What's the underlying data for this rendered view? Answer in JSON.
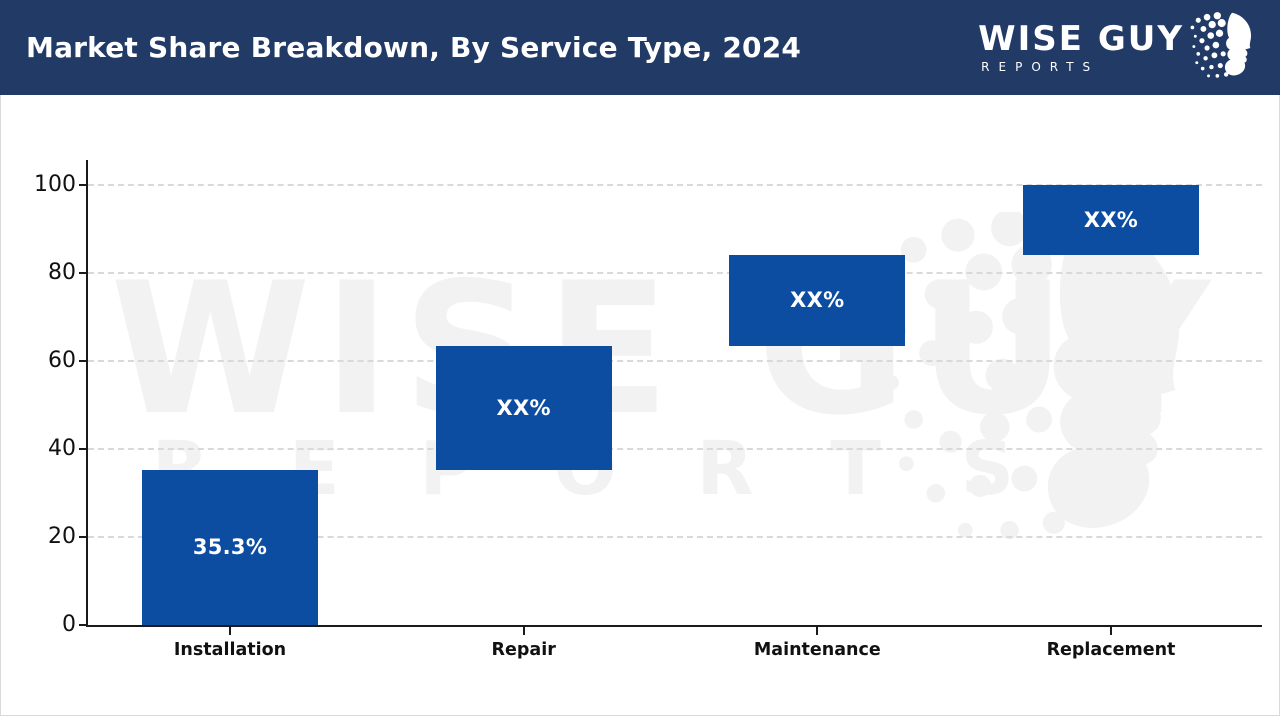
{
  "header": {
    "title": "Market Share Breakdown, By Service Type, 2024",
    "brand": {
      "name": "WISE GUY",
      "sub": "REPORTS"
    }
  },
  "watermark": {
    "line1": "WISE GUY",
    "line2": "REPORTS"
  },
  "colors": {
    "header_bg": "#213a66",
    "bar_fill": "#0c4da2",
    "bar_label_text": "#ffffff",
    "grid": "#d9d9d9",
    "axis": "#1a1a1a",
    "watermark": "#f2f2f2"
  },
  "chart_data": {
    "type": "bar",
    "subtype": "floating-waterfall",
    "title": "Market Share Breakdown, By Service Type, 2024",
    "categories": [
      "Installation",
      "Repair",
      "Maintenance",
      "Replacement"
    ],
    "bars": [
      {
        "category": "Installation",
        "start": 0,
        "end": 35.3,
        "label": "35.3%"
      },
      {
        "category": "Repair",
        "start": 35.3,
        "end": 63.5,
        "label": "XX%"
      },
      {
        "category": "Maintenance",
        "start": 63.5,
        "end": 84,
        "label": "XX%"
      },
      {
        "category": "Replacement",
        "start": 84,
        "end": 100,
        "label": "XX%"
      }
    ],
    "y_ticks": [
      0,
      20,
      40,
      60,
      80,
      100
    ],
    "ylim": [
      0,
      105.7
    ],
    "xlabel": "",
    "ylabel": "",
    "grid": "horizontal-dashed",
    "legend": "none"
  }
}
